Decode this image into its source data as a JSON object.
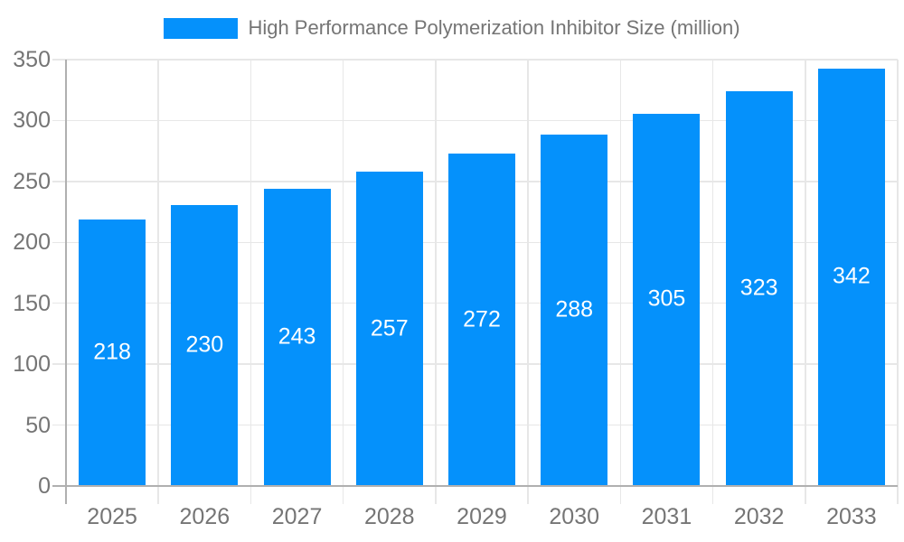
{
  "legend": {
    "label": "High Performance Polymerization Inhibitor Size (million)"
  },
  "chart_data": {
    "type": "bar",
    "title": "High Performance Polymerization Inhibitor Size (million)",
    "series_name": "High Performance Polymerization Inhibitor Size (million)",
    "categories": [
      "2025",
      "2026",
      "2027",
      "2028",
      "2029",
      "2030",
      "2031",
      "2032",
      "2033"
    ],
    "values": [
      218,
      230,
      243,
      257,
      272,
      288,
      305,
      323,
      342
    ],
    "value_labels": [
      "218",
      "230",
      "243",
      "257",
      "272",
      "288",
      "305",
      "323",
      "342"
    ],
    "xlabel": "",
    "ylabel": "",
    "ylim": [
      0,
      350
    ],
    "yticks": [
      0,
      50,
      100,
      150,
      200,
      250,
      300,
      350
    ],
    "grid": true,
    "legend_position": "top-center",
    "value_label_position": "middle-of-bar"
  },
  "colors": {
    "bar": "#0591fb",
    "grid": "#e7e7e7",
    "axis": "#b0b0b0",
    "text": "#757575",
    "value_label": "#ffffff",
    "background": "#ffffff"
  }
}
